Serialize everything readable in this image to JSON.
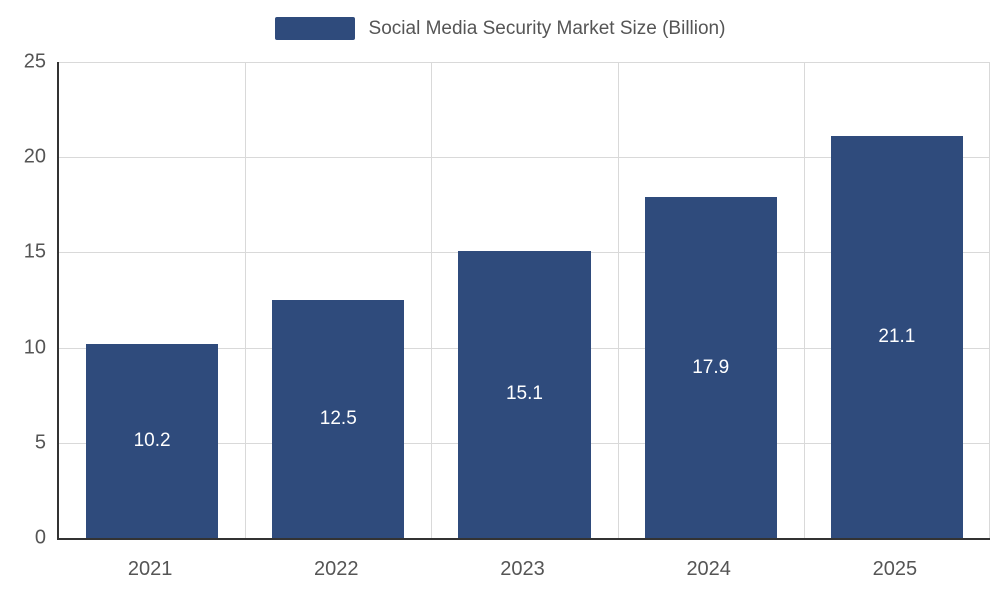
{
  "chart_data": {
    "type": "bar",
    "title": "Social Media Security Market Size (Billion)",
    "categories": [
      "2021",
      "2022",
      "2023",
      "2024",
      "2025"
    ],
    "values": [
      10.2,
      12.5,
      15.1,
      17.9,
      21.1
    ],
    "value_labels": [
      "10.2",
      "12.5",
      "15.1",
      "17.9",
      "21.1"
    ],
    "xlabel": "",
    "ylabel": "",
    "ylim": [
      0,
      25
    ],
    "yticks": [
      0,
      5,
      10,
      15,
      20,
      25
    ],
    "grid": true,
    "legend_position": "top-center",
    "colors": {
      "bar": "#2f4b7c",
      "grid": "#d9d9d9",
      "axis": "#333333",
      "tick_text": "#555555",
      "legend_text": "#555555",
      "bar_label": "#ffffff",
      "background": "#ffffff"
    }
  }
}
